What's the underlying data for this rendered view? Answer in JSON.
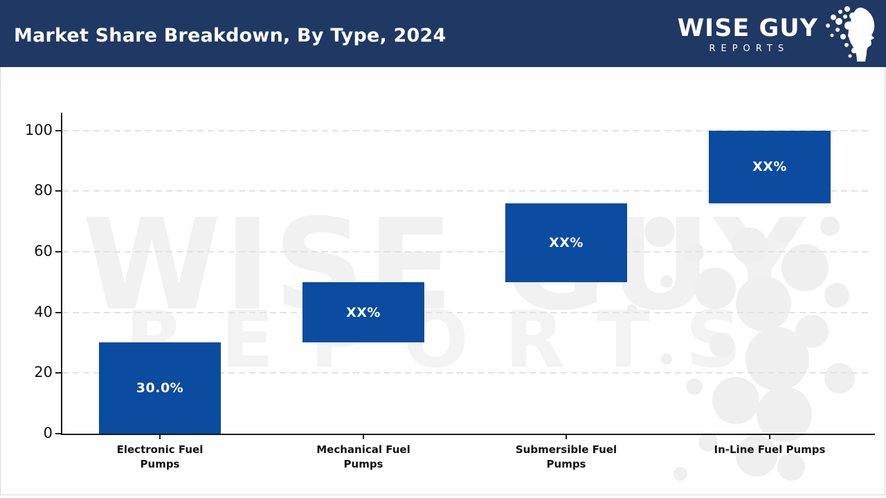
{
  "header": {
    "title": "Market Share Breakdown, By Type, 2024",
    "logo": {
      "line1": "WISE GUY",
      "line2": "REPORTS"
    }
  },
  "watermark": {
    "line1": "WISE GUY",
    "line2": "REPORTS"
  },
  "chart_data": {
    "type": "bar",
    "subtype": "waterfall",
    "title": "Market Share Breakdown, By Type, 2024",
    "categories": [
      "Electronic Fuel\nPumps",
      "Mechanical Fuel\nPumps",
      "Submersible Fuel\nPumps",
      "In-Line Fuel Pumps"
    ],
    "segments": [
      {
        "category": "Electronic Fuel Pumps",
        "start": 0,
        "end": 30,
        "label": "30.0%"
      },
      {
        "category": "Mechanical Fuel Pumps",
        "start": 30,
        "end": 50,
        "label": "XX%"
      },
      {
        "category": "Submersible Fuel Pumps",
        "start": 50,
        "end": 76,
        "label": "XX%"
      },
      {
        "category": "In-Line Fuel Pumps",
        "start": 76,
        "end": 100,
        "label": "XX%"
      }
    ],
    "yticks": [
      0,
      20,
      40,
      60,
      80,
      100
    ],
    "ylim": [
      0,
      105
    ],
    "xlabel": "",
    "ylabel": "",
    "grid": "horizontal-dashed",
    "legend": null
  },
  "colors": {
    "header_bg": "#1f3864",
    "bar": "#0b4ba0",
    "bar_label": "#ffffff",
    "axis": "#1a1a1a",
    "gridline": "#e3e3e3",
    "watermark": "#f1f1f1",
    "frame_border": "#d8d8d8"
  }
}
